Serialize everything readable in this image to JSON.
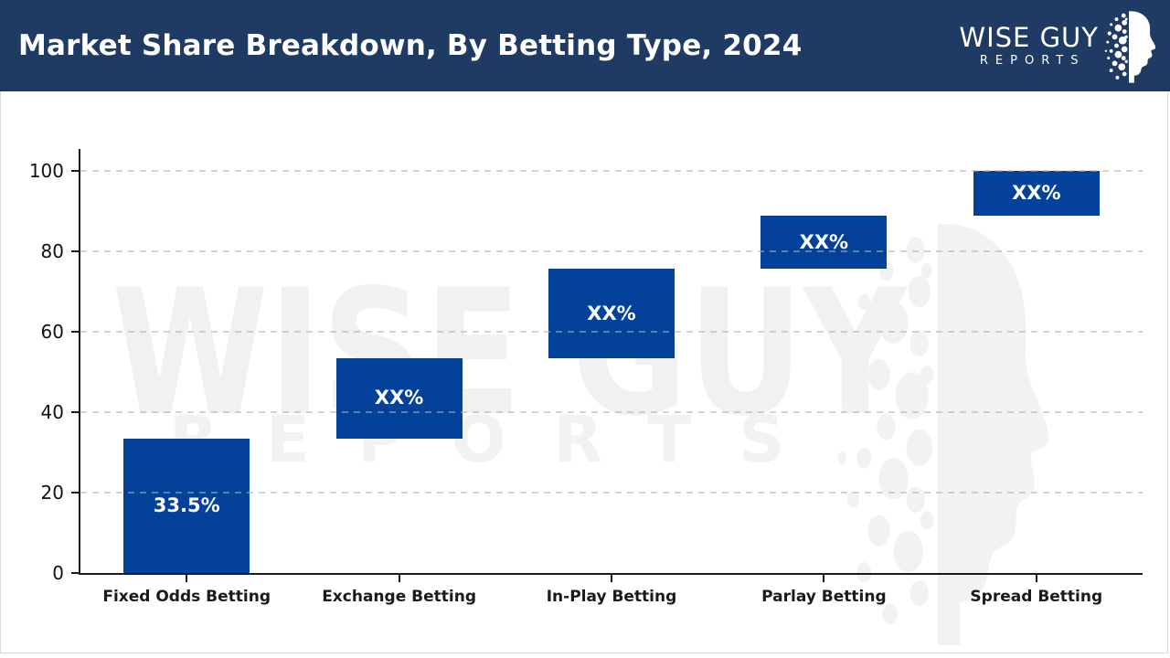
{
  "header": {
    "title": "Market Share Breakdown, By Betting Type, 2024",
    "bg_color": "#1F3A63",
    "logo": {
      "name": "WISE GUY",
      "tagline": "REPORTS"
    }
  },
  "watermark": {
    "line1": "WISE GUY",
    "line2": "REPORTS"
  },
  "icons": {
    "logo_head": "wise-guy-head-icon"
  },
  "chart_data": {
    "type": "bar",
    "subtype": "waterfall",
    "title": "Market Share Breakdown, By Betting Type, 2024",
    "categories": [
      "Fixed Odds Betting",
      "Exchange Betting",
      "In-Play Betting",
      "Parlay Betting",
      "Spread Betting"
    ],
    "segments": [
      [
        0,
        33.5
      ],
      [
        33.5,
        53.4
      ],
      [
        53.4,
        75.7
      ],
      [
        75.7,
        88.9
      ],
      [
        88.9,
        100
      ]
    ],
    "bar_labels": [
      "33.5%",
      "XX%",
      "XX%",
      "XX%",
      "XX%"
    ],
    "y_ticks": [
      0,
      20,
      40,
      60,
      80,
      100
    ],
    "ylim": [
      0,
      105.5
    ],
    "xlabel": "",
    "ylabel": "",
    "grid": "horizontal-dashed",
    "legend": "none",
    "bar_color": "#04419A",
    "label_color": "#FFFFFF"
  }
}
